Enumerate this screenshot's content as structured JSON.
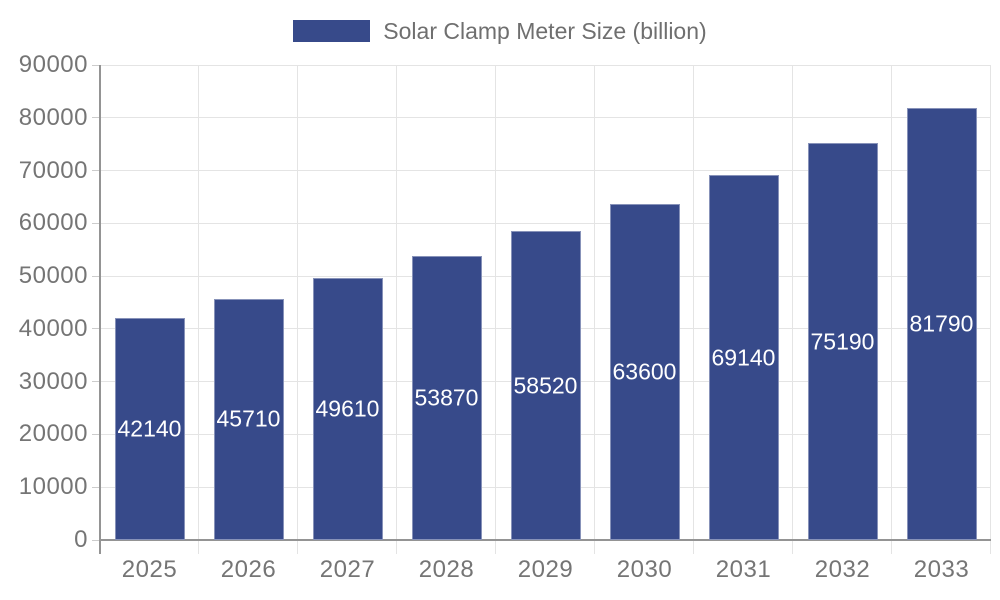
{
  "chart_data": {
    "type": "bar",
    "title": "Solar Clamp Meter Size (billion)",
    "categories": [
      "2025",
      "2026",
      "2027",
      "2028",
      "2029",
      "2030",
      "2031",
      "2032",
      "2033"
    ],
    "values": [
      42140,
      45710,
      49610,
      53870,
      58520,
      63600,
      69140,
      75190,
      81790
    ],
    "value_labels": [
      "42140",
      "45710",
      "49610",
      "53870",
      "58520",
      "63600",
      "69140",
      "75190",
      "81790"
    ],
    "xlabel": "",
    "ylabel": "",
    "ylim": [
      0,
      90000
    ],
    "ytick_step": 10000,
    "ytick_labels": [
      "0",
      "10000",
      "20000",
      "30000",
      "40000",
      "50000",
      "60000",
      "70000",
      "80000",
      "90000"
    ],
    "grid": true,
    "legend_position": "top",
    "colors": {
      "bar": "#374a8a",
      "value_label": "#ffffff",
      "axis_text": "#757575",
      "legend_text": "#6f6f6f",
      "gridline": "#e4e4e4",
      "axis_line": "#949494",
      "tick": "#cccccc"
    }
  }
}
